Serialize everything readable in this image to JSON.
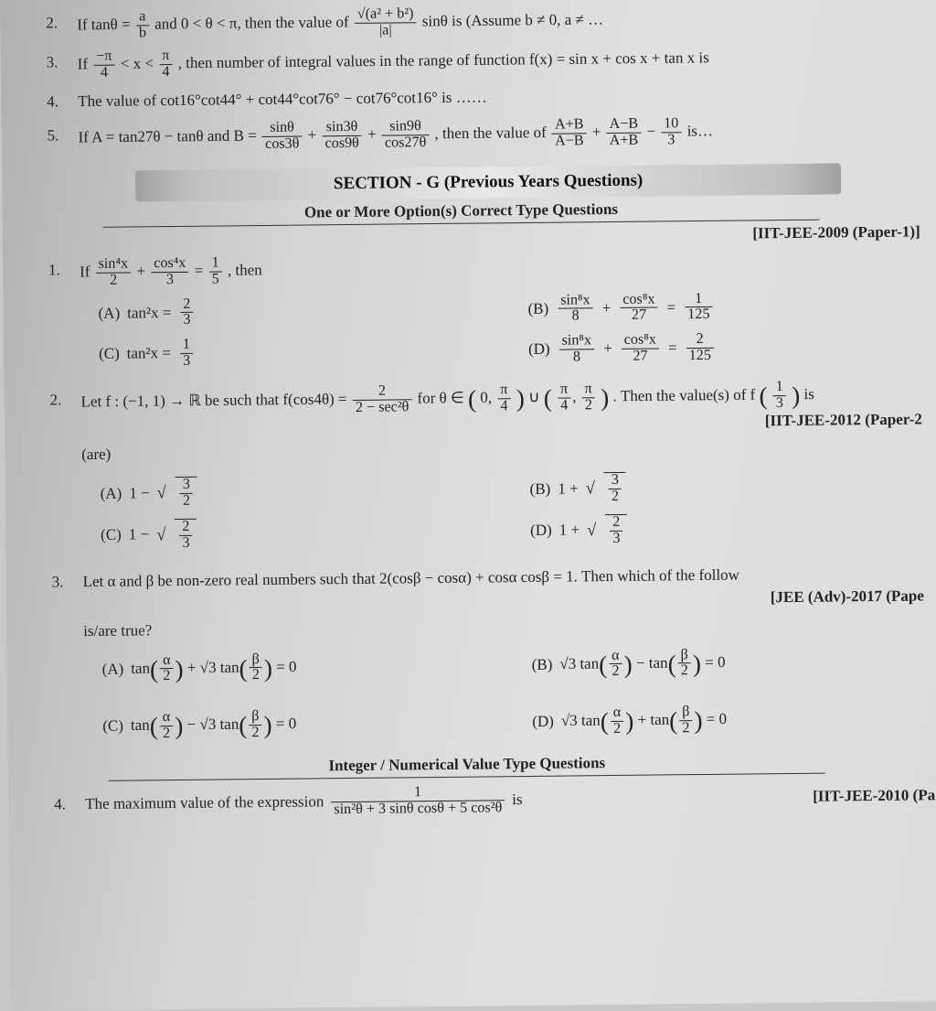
{
  "top": {
    "q2": {
      "num": "2.",
      "pre": "If tanθ = ",
      "frac1_n": "a",
      "frac1_d": "b",
      "mid1": " and 0 < θ < π, then the value of ",
      "frac2_n": "√(a² + b²)",
      "frac2_d": "|a|",
      "end": " sinθ is  (Assume b ≠ 0, a ≠ …"
    },
    "q3": {
      "num": "3.",
      "pre": "If ",
      "frac1_n": "−π",
      "frac1_d": "4",
      "mid1": " < x < ",
      "frac2_n": "π",
      "frac2_d": "4",
      "end": ", then number of integral values in the range of function f(x) = sin x + cos x + tan x is"
    },
    "q4": {
      "num": "4.",
      "text": "The value of cot16°cot44° + cot44°cot76° − cot76°cot16° is ……"
    },
    "q5": {
      "num": "5.",
      "pre": "If A = tan27θ − tanθ and B = ",
      "t1_n": "sinθ",
      "t1_d": "cos3θ",
      "plus1": " + ",
      "t2_n": "sin3θ",
      "t2_d": "cos9θ",
      "plus2": " + ",
      "t3_n": "sin9θ",
      "t3_d": "cos27θ",
      "mid": ", then the value of ",
      "r1_n": "A+B",
      "r1_d": "A−B",
      "plus3": " + ",
      "r2_n": "A−B",
      "r2_d": "A+B",
      "minus": " − ",
      "r3_n": "10",
      "r3_d": "3",
      "end": " is…"
    }
  },
  "sectionG": "SECTION - G (Previous Years Questions)",
  "subheading1": "One or More Option(s) Correct Type Questions",
  "pyq": {
    "q1": {
      "tag": "[IIT-JEE-2009 (Paper-1)]",
      "num": "1.",
      "pre": "If ",
      "f1_n": "sin⁴x",
      "f1_d": "2",
      "plus": " + ",
      "f2_n": "cos⁴x",
      "f2_d": "3",
      "eq": " = ",
      "f3_n": "1",
      "f3_d": "5",
      "end": ", then",
      "A": {
        "l": "(A)",
        "pre": "tan²x = ",
        "n": "2",
        "d": "3"
      },
      "B": {
        "l": "(B)",
        "n1": "sin⁸x",
        "d1": "8",
        "p": " + ",
        "n2": "cos⁸x",
        "d2": "27",
        "e": " = ",
        "n3": "1",
        "d3": "125"
      },
      "C": {
        "l": "(C)",
        "pre": "tan²x = ",
        "n": "1",
        "d": "3"
      },
      "D": {
        "l": "(D)",
        "n1": "sin⁸x",
        "d1": "8",
        "p": " + ",
        "n2": "cos⁸x",
        "d2": "27",
        "e": " = ",
        "n3": "2",
        "d3": "125"
      }
    },
    "q2": {
      "num": "2.",
      "pre": "Let f : (−1, 1) → ℝ be such that f(cos4θ) = ",
      "fn": "2",
      "fd": "2 − sec²θ",
      "mid": " for θ ∈ ",
      "int1a": "0",
      "int1b_n": "π",
      "int1b_d": "4",
      "cup": " ∪ ",
      "int2a_n": "π",
      "int2a_d": "4",
      "int2b_n": "π",
      "int2b_d": "2",
      "end1": ". Then the value(s) of f",
      "arg_n": "1",
      "arg_d": "3",
      "end2": " is",
      "tag": "[IIT-JEE-2012 (Paper-2",
      "are": "(are)",
      "A": {
        "l": "(A)",
        "pre": "1 − ",
        "n": "3",
        "d": "2"
      },
      "B": {
        "l": "(B)",
        "pre": "1 + ",
        "n": "3",
        "d": "2"
      },
      "C": {
        "l": "(C)",
        "pre": "1 − ",
        "n": "2",
        "d": "3"
      },
      "D": {
        "l": "(D)",
        "pre": "1 + ",
        "n": "2",
        "d": "3"
      }
    },
    "q3": {
      "num": "3.",
      "text": "Let α and β be non-zero real numbers such that 2(cosβ − cosα) + cosα cosβ = 1. Then which of the follow",
      "tag": "[JEE (Adv)-2017 (Pape",
      "sub": "is/are true?",
      "A": {
        "l": "(A)",
        "t": "tan(α/2) + √3 tan(β/2) = 0"
      },
      "B": {
        "l": "(B)",
        "t": "√3 tan(α/2) − tan(β/2) = 0"
      },
      "C": {
        "l": "(C)",
        "t": "tan(α/2) − √3 tan(β/2) = 0"
      },
      "D": {
        "l": "(D)",
        "t": "√3 tan(α/2) + tan(β/2) = 0"
      }
    }
  },
  "subheading2": "Integer / Numerical Value Type Questions",
  "q4": {
    "num": "4.",
    "pre": "The maximum value of the expression ",
    "n": "1",
    "d": "sin²θ + 3 sinθ cosθ + 5 cos²θ",
    "end": " is",
    "tag": "[IIT-JEE-2010 (Pa"
  }
}
